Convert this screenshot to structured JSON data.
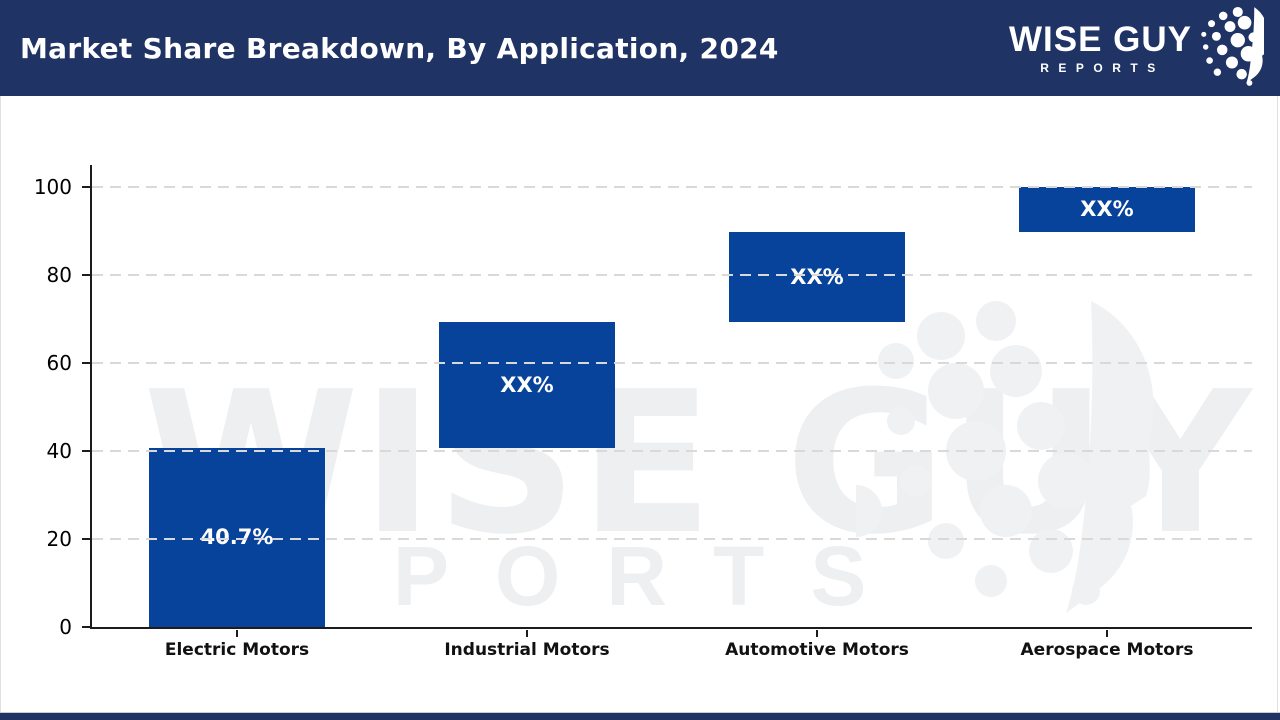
{
  "header": {
    "title": "Market Share Breakdown, By Application, 2024",
    "logo": {
      "line1": "WISE GUY",
      "line2": "REPORTS"
    }
  },
  "watermark": {
    "line1": "WISE GUY",
    "line2": "PORTS"
  },
  "chart_data": {
    "type": "bar",
    "subtype": "waterfall",
    "title": "Market Share Breakdown, By Application, 2024",
    "categories": [
      "Electric Motors",
      "Industrial Motors",
      "Automotive Motors",
      "Aerospace Motors"
    ],
    "segments": [
      {
        "category": "Electric Motors",
        "start": 0,
        "end": 40.7,
        "label": "40.7%"
      },
      {
        "category": "Industrial Motors",
        "start": 40.7,
        "end": 69.3,
        "label": "XX%"
      },
      {
        "category": "Automotive Motors",
        "start": 69.3,
        "end": 89.8,
        "label": "XX%"
      },
      {
        "category": "Aerospace Motors",
        "start": 89.8,
        "end": 100,
        "label": "XX%"
      }
    ],
    "yticks": [
      0,
      20,
      40,
      60,
      80,
      100
    ],
    "ylim": [
      0,
      105
    ],
    "grid": "horizontal-dashed",
    "legend": "none",
    "bar_color": "#07429b",
    "bar_label_color": "#ffffff",
    "axis_color": "#1c1c1c",
    "grid_color": "#d9d9d9"
  },
  "colors": {
    "header_bg": "#1f3364",
    "footer_bg": "#1f3364",
    "watermark": "#edeff1"
  }
}
